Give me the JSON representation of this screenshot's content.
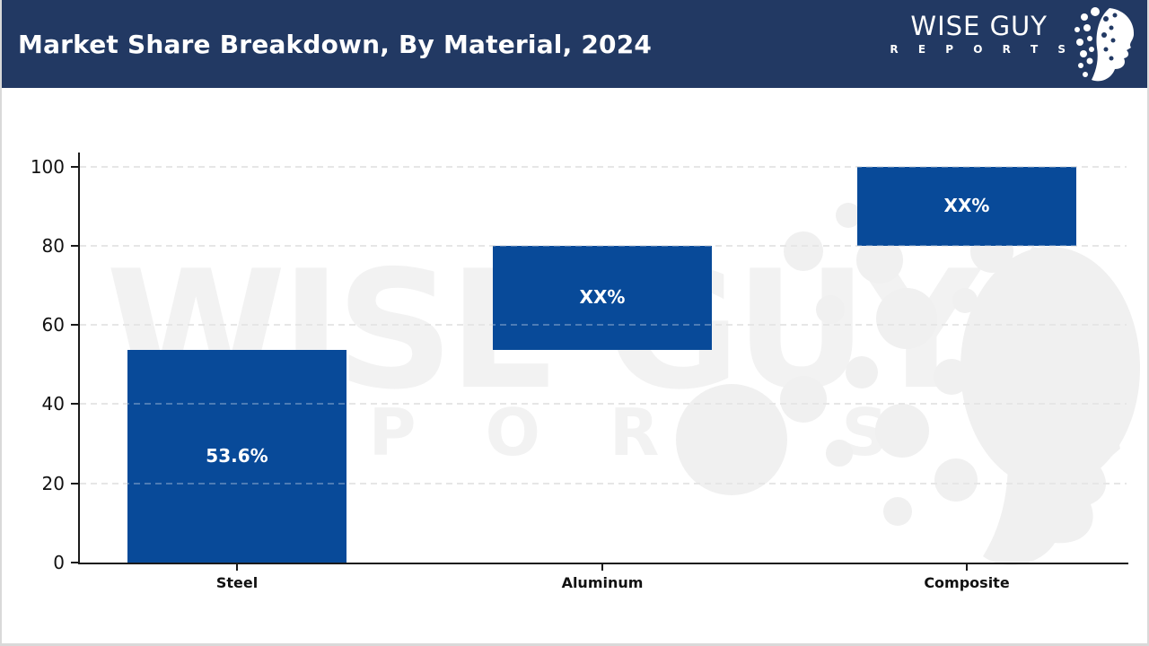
{
  "header": {
    "title": "Market Share Breakdown, By Material, 2024",
    "logo_line1": "WISE GUY",
    "logo_line2": "R E P O R T S",
    "bg_color": "#223963"
  },
  "watermark": {
    "line1": "WISE GUY",
    "line2": "R E P O R T S"
  },
  "chart_data": {
    "type": "bar",
    "subtype": "floating-waterfall",
    "title": "Market Share Breakdown, By Material, 2024",
    "categories": [
      "Steel",
      "Aluminum",
      "Composite"
    ],
    "series": [
      {
        "name": "Market Share (%)",
        "segments": [
          {
            "category": "Steel",
            "start": 0,
            "end": 53.6,
            "label": "53.6%"
          },
          {
            "category": "Aluminum",
            "start": 53.6,
            "end": 80,
            "label": "XX%"
          },
          {
            "category": "Composite",
            "start": 80,
            "end": 100,
            "label": "XX%"
          }
        ]
      }
    ],
    "bar_color": "#084a99",
    "label_color": "#ffffff",
    "xlabel": "",
    "ylabel": "",
    "ylim": [
      0,
      100
    ],
    "yticks": [
      0,
      20,
      40,
      60,
      80,
      100
    ],
    "grid": "horizontal-dashed",
    "legend": "none"
  }
}
